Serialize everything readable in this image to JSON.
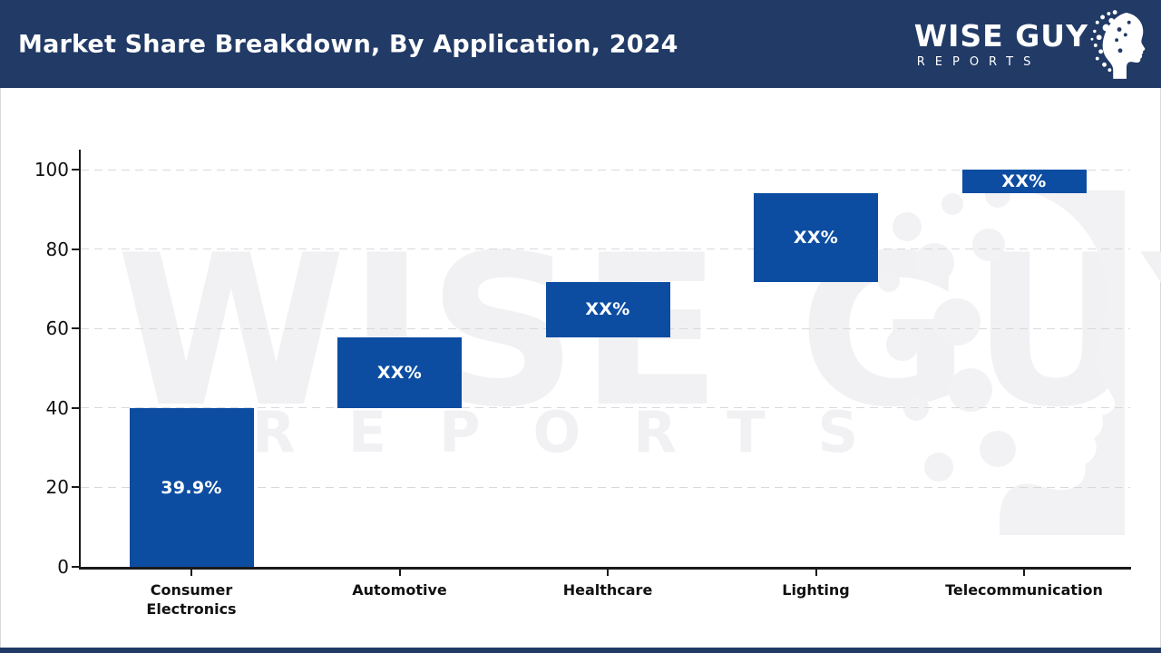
{
  "header": {
    "title": "Market Share Breakdown, By Application, 2024",
    "logo": {
      "brand_line1": "WISE GUY",
      "brand_line2": "REPORTS"
    }
  },
  "watermark": {
    "line1": "WISE GUY",
    "line2": "REPORTS"
  },
  "colors": {
    "header_bg": "#213A66",
    "bar": "#0C4DA2",
    "gridline": "#d9d9d9",
    "axis": "#1a1a1a",
    "watermark": "#f1f1f4",
    "bar_label": "#ffffff",
    "title_text": "#ffffff",
    "axis_label_text": "#111111"
  },
  "chart_data": {
    "type": "bar",
    "variant": "waterfall",
    "title": "Market Share Breakdown, By Application, 2024",
    "categories": [
      "Consumer\nElectronics",
      "Automotive",
      "Healthcare",
      "Lighting",
      "Telecommunication"
    ],
    "bars": [
      {
        "category": "Consumer Electronics",
        "start": 0,
        "end": 39.9,
        "label": "39.9%"
      },
      {
        "category": "Automotive",
        "start": 40,
        "end": 57.8,
        "label": "XX%"
      },
      {
        "category": "Healthcare",
        "start": 57.8,
        "end": 71.8,
        "label": "XX%"
      },
      {
        "category": "Lighting",
        "start": 71.8,
        "end": 94,
        "label": "XX%"
      },
      {
        "category": "Telecommunication",
        "start": 94,
        "end": 100,
        "label": "XX%"
      }
    ],
    "xlabel": "",
    "ylabel": "",
    "yticks": [
      0,
      20,
      40,
      60,
      80,
      100
    ],
    "ylim": [
      0,
      105
    ],
    "grid": true,
    "grid_style": "dashed",
    "legend": false
  }
}
